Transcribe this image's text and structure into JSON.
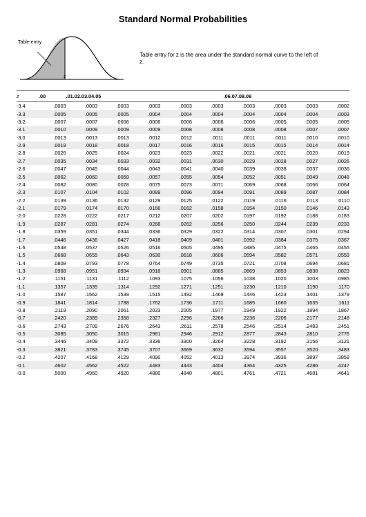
{
  "title": "Standard Normal Probabilities",
  "curve_label": "Table entry",
  "z_marker": "z",
  "description": "Table entry for z is the area under the standard normal curve to the left of z.",
  "curve": {
    "stroke": "#000000",
    "fill_shade": "#b7b7b7",
    "baseline": "#000000"
  },
  "columns": [
    "z",
    ".00",
    ".01",
    ".02",
    ".03",
    ".04",
    ".05",
    ".06",
    ".07",
    ".08",
    ".09"
  ],
  "header_groups": [
    ".00",
    ".01.02.03.04.05",
    ".06.07.08.09"
  ],
  "rows": [
    {
      "z": "-3.4",
      "v": [
        ".0003",
        ".0003",
        ".0003",
        ".0003",
        ".0003",
        ".0003",
        ".0003",
        ".0003",
        ".0003",
        ".0002"
      ]
    },
    {
      "z": "-3.3",
      "v": [
        ".0005",
        ".0005",
        ".0005",
        ".0004",
        ".0004",
        ".0004",
        ".0004",
        ".0004",
        ".0004",
        ".0003"
      ]
    },
    {
      "z": "-3.2",
      "v": [
        ".0007",
        ".0007",
        ".0006",
        ".0006",
        ".0006",
        ".0006",
        ".0006",
        ".0005",
        ".0005",
        ".0005"
      ]
    },
    {
      "z": "-3.1",
      "v": [
        ".0010",
        ".0009",
        ".0009",
        ".0009",
        ".0008",
        ".0008",
        ".0008",
        ".0008",
        ".0007",
        ".0007"
      ]
    },
    {
      "z": "-3.0",
      "v": [
        ".0013",
        ".0013",
        ".0013",
        ".0012",
        ".0012",
        ".0011",
        ".0011",
        ".0011",
        ".0010",
        ".0010"
      ]
    },
    {
      "z": "-2.9",
      "v": [
        ".0019",
        ".0018",
        ".0018",
        ".0017",
        ".0016",
        ".0016",
        ".0015",
        ".0015",
        ".0014",
        ".0014"
      ]
    },
    {
      "z": "-2.8",
      "v": [
        ".0026",
        ".0025",
        ".0024",
        ".0023",
        ".0023",
        ".0022",
        ".0021",
        ".0021",
        ".0020",
        ".0019"
      ]
    },
    {
      "z": "-2.7",
      "v": [
        ".0035",
        ".0034",
        ".0033",
        ".0032",
        ".0031",
        ".0030",
        ".0029",
        ".0028",
        ".0027",
        ".0026"
      ]
    },
    {
      "z": "-2.6",
      "v": [
        ".0047",
        ".0045",
        ".0044",
        ".0043",
        ".0041",
        ".0040",
        ".0039",
        ".0038",
        ".0037",
        ".0036"
      ]
    },
    {
      "z": "-2.5",
      "v": [
        ".0062",
        ".0060",
        ".0059",
        ".0057",
        ".0055",
        ".0054",
        ".0052",
        ".0051",
        ".0049",
        ".0048"
      ]
    },
    {
      "z": "-2.4",
      "v": [
        ".0082",
        ".0080",
        ".0078",
        ".0075",
        ".0073",
        ".0071",
        ".0069",
        ".0068",
        ".0066",
        ".0064"
      ]
    },
    {
      "z": "-2.3",
      "v": [
        ".0107",
        ".0104",
        ".0102",
        ".0099",
        ".0096",
        ".0094",
        ".0091",
        ".0089",
        ".0087",
        ".0084"
      ]
    },
    {
      "z": "-2.2",
      "v": [
        ".0139",
        ".0136",
        ".0132",
        ".0129",
        ".0125",
        ".0122",
        ".0119",
        ".0116",
        ".0113",
        ".0110"
      ]
    },
    {
      "z": "-2.1",
      "v": [
        ".0179",
        ".0174",
        ".0170",
        ".0166",
        ".0162",
        ".0158",
        ".0154",
        ".0150",
        ".0146",
        ".0143"
      ]
    },
    {
      "z": "-2.0",
      "v": [
        ".0228",
        ".0222",
        ".0217",
        ".0212",
        ".0207",
        ".0202",
        ".0197",
        ".0192",
        ".0188",
        ".0183"
      ]
    },
    {
      "z": "-1.9",
      "v": [
        ".0287",
        ".0281",
        ".0274",
        ".0268",
        ".0262",
        ".0256",
        ".0250",
        ".0244",
        ".0239",
        ".0233"
      ]
    },
    {
      "z": "-1.8",
      "v": [
        ".0359",
        ".0351",
        ".0344",
        ".0336",
        ".0329",
        ".0322",
        ".0314",
        ".0307",
        ".0301",
        ".0294"
      ]
    },
    {
      "z": "-1.7",
      "v": [
        ".0446",
        ".0436",
        ".0427",
        ".0418",
        ".0409",
        ".0401",
        ".0392",
        ".0384",
        ".0375",
        ".0367"
      ]
    },
    {
      "z": "-1.6",
      "v": [
        ".0548",
        ".0537",
        ".0526",
        ".0516",
        ".0505",
        ".0495",
        ".0485",
        ".0475",
        ".0465",
        ".0455"
      ]
    },
    {
      "z": "-1.5",
      "v": [
        ".0668",
        ".0655",
        ".0643",
        ".0630",
        ".0618",
        ".0606",
        ".0594",
        ".0582",
        ".0571",
        ".0559"
      ]
    },
    {
      "z": "-1.4",
      "v": [
        ".0808",
        ".0793",
        ".0778",
        ".0764",
        ".0749",
        ".0735",
        ".0721",
        ".0708",
        ".0694",
        ".0681"
      ]
    },
    {
      "z": "-1.3",
      "v": [
        ".0968",
        ".0951",
        ".0934",
        ".0918",
        ".0901",
        ".0885",
        ".0869",
        ".0853",
        ".0838",
        ".0823"
      ]
    },
    {
      "z": "-1.2",
      "v": [
        ".1151",
        ".1131",
        ".1112",
        ".1093",
        ".1075",
        ".1056",
        ".1038",
        ".1020",
        ".1003",
        ".0985"
      ]
    },
    {
      "z": "-1.1",
      "v": [
        ".1357",
        ".1335",
        ".1314",
        ".1292",
        ".1271",
        ".1251",
        ".1230",
        ".1210",
        ".1190",
        ".1170"
      ]
    },
    {
      "z": "-1.0",
      "v": [
        ".1587",
        ".1562",
        ".1539",
        ".1515",
        ".1492",
        ".1469",
        ".1446",
        ".1423",
        ".1401",
        ".1379"
      ]
    },
    {
      "z": "-0.9",
      "v": [
        ".1841",
        ".1814",
        ".1788",
        ".1762",
        ".1736",
        ".1711",
        ".1685",
        ".1660",
        ".1635",
        ".1611"
      ]
    },
    {
      "z": "-0.8",
      "v": [
        ".2119",
        ".2090",
        ".2061",
        ".2033",
        ".2005",
        ".1977",
        ".1949",
        ".1922",
        ".1894",
        ".1867"
      ]
    },
    {
      "z": "-0.7",
      "v": [
        ".2420",
        ".2389",
        ".2358",
        ".2327",
        ".2296",
        ".2266",
        ".2236",
        ".2206",
        ".2177",
        ".2148"
      ]
    },
    {
      "z": "-0.6",
      "v": [
        ".2743",
        ".2709",
        ".2676",
        ".2643",
        ".2611",
        ".2578",
        ".2546",
        ".2514",
        ".2483",
        ".2451"
      ]
    },
    {
      "z": "-0.5",
      "v": [
        ".3085",
        ".3050",
        ".3015",
        ".2981",
        ".2946",
        ".2912",
        ".2877",
        ".2843",
        ".2810",
        ".2776"
      ]
    },
    {
      "z": "-0.4",
      "v": [
        ".3446",
        ".3409",
        ".3372",
        ".3336",
        ".3300",
        ".3264",
        ".3228",
        ".3192",
        ".3156",
        ".3121"
      ]
    },
    {
      "z": "-0.3",
      "v": [
        ".3821",
        ".3783",
        ".3745",
        ".3707",
        ".3669",
        ".3632",
        ".3594",
        ".3557",
        ".3520",
        ".3483"
      ]
    },
    {
      "z": "-0.2",
      "v": [
        ".4207",
        ".4168",
        ".4129",
        ".4090",
        ".4052",
        ".4013",
        ".3974",
        ".3936",
        ".3897",
        ".3859"
      ]
    },
    {
      "z": "-0.1",
      "v": [
        ".4602",
        ".4562",
        ".4522",
        ".4483",
        ".4443",
        ".4404",
        ".4364",
        ".4325",
        ".4286",
        ".4247"
      ]
    },
    {
      "z": "-0.0",
      "v": [
        ".5000",
        ".4960",
        ".4920",
        ".4880",
        ".4840",
        ".4801",
        ".4761",
        ".4721",
        ".4681",
        ".4641"
      ]
    }
  ],
  "shade_color": "#ececec"
}
